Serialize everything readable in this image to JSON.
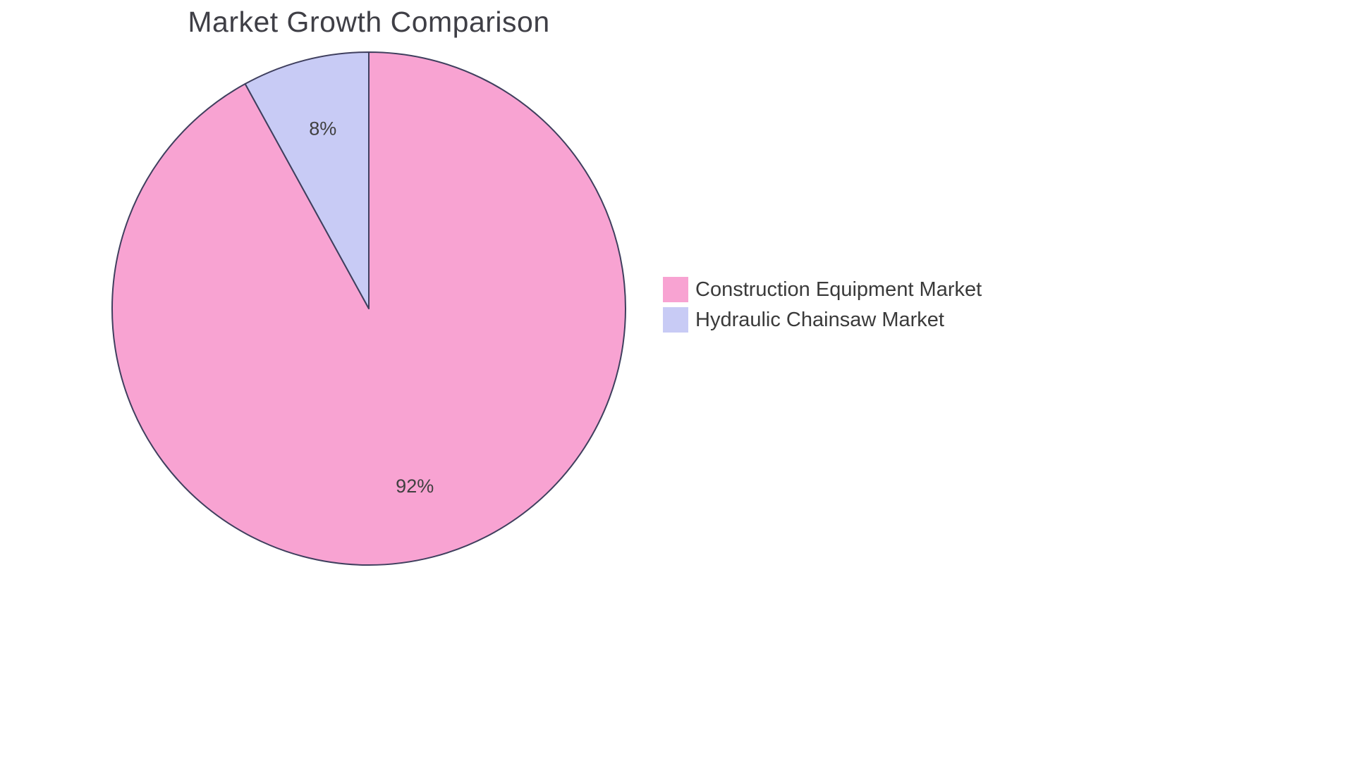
{
  "chart_data": {
    "type": "pie",
    "title": "Market Growth Comparison",
    "labels": [
      "Construction Equipment Market",
      "Hydraulic Chainsaw Market"
    ],
    "values": [
      92,
      8
    ],
    "value_labels": [
      "92%",
      "8%"
    ],
    "colors": [
      "#F8A3D2",
      "#C8CBF5"
    ],
    "stroke_color": "#3F3F5E",
    "label_format": "percent",
    "legend_position": "right",
    "start_angle_deg": -90,
    "direction": "clockwise",
    "center": [
      523,
      438
    ],
    "radius": 364,
    "label_radius_ratio": 0.72
  }
}
